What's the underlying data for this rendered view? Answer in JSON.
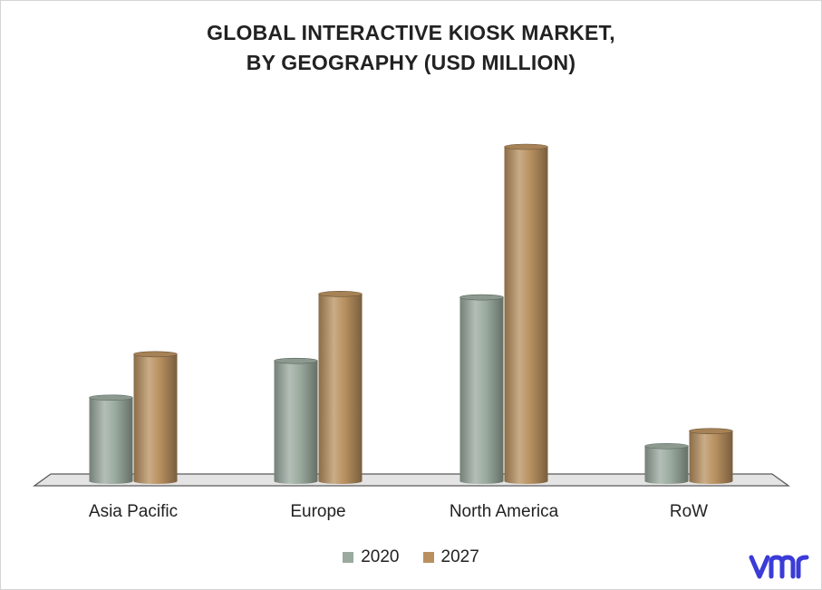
{
  "chart_data": {
    "type": "bar",
    "title_lines": [
      "GLOBAL INTERACTIVE KIOSK MARKET,",
      "BY GEOGRAPHY (USD MILLION)"
    ],
    "categories": [
      "Asia Pacific",
      "Europe",
      "North America",
      "RoW"
    ],
    "series": [
      {
        "name": "2020",
        "color": "#9aaa9e",
        "values": [
          25,
          36,
          55,
          10.5
        ]
      },
      {
        "name": "2027",
        "color": "#b8905f",
        "values": [
          38,
          56,
          100,
          15
        ]
      }
    ],
    "xlabel": "",
    "ylabel": "",
    "ylim": [
      0,
      100
    ],
    "grid": false,
    "legend": "bottom-center",
    "style": "3d-cylinder"
  },
  "branding": {
    "logo": "vmr-logo",
    "logo_color": "#3b3bd8"
  }
}
